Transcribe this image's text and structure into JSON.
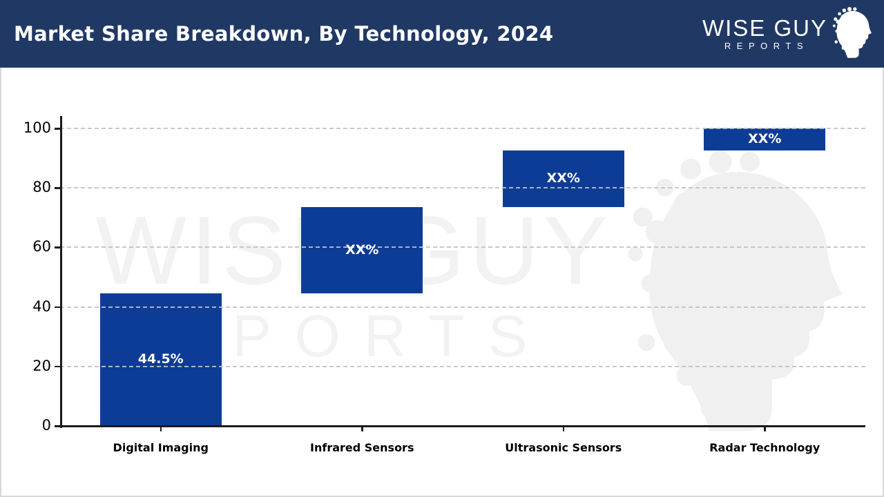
{
  "header": {
    "title": "Market Share Breakdown, By Technology, 2024",
    "logo": {
      "line1": "WISE GUY",
      "line2": "REPORTS"
    }
  },
  "watermark": {
    "line1": "WISE GUY",
    "line2": "REPORTS"
  },
  "chart_data": {
    "type": "bar",
    "subtype": "floating-waterfall",
    "title": "Market Share Breakdown, By Technology, 2024",
    "categories": [
      "Digital Imaging",
      "Infrared Sensors",
      "Ultrasonic Sensors",
      "Radar Technology"
    ],
    "series": [
      {
        "name": "Market Share (%)",
        "segments": [
          {
            "category": "Digital Imaging",
            "base": 0,
            "top": 44.5,
            "label": "44.5%"
          },
          {
            "category": "Infrared Sensors",
            "base": 44.5,
            "top": 73.5,
            "label": "XX%"
          },
          {
            "category": "Ultrasonic Sensors",
            "base": 73.5,
            "top": 92.5,
            "label": "XX%"
          },
          {
            "category": "Radar Technology",
            "base": 92.5,
            "top": 100,
            "label": "XX%"
          }
        ]
      }
    ],
    "xlabel": "",
    "ylabel": "",
    "ylim": [
      0,
      100
    ],
    "yticks": [
      0,
      20,
      40,
      60,
      80,
      100
    ],
    "grid": "horizontal-dashed",
    "legend": "none",
    "bar_color": "#0d3c96",
    "bar_label_color": "#ffffff",
    "axis_color": "#1a1a1a",
    "gridline_color": "#c1c1c6",
    "header_color": "#203864"
  }
}
